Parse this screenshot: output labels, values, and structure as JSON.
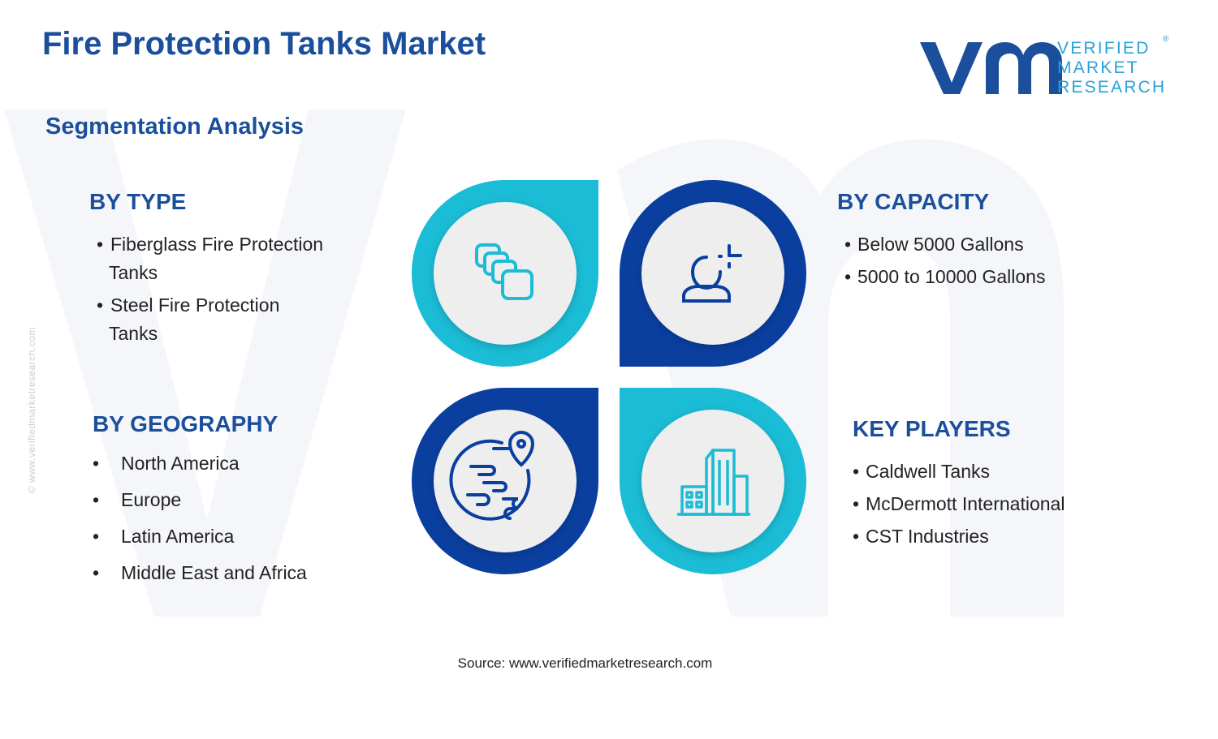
{
  "title": "Fire Protection Tanks Market",
  "subtitle": "Segmentation Analysis",
  "brand": {
    "line1": "VERIFIED",
    "line2": "MARKET",
    "line3": "RESEARCH",
    "reg": "®"
  },
  "side_text": "© www.verifiedmarketresearch.com",
  "source": "Source: www.verifiedmarketresearch.com",
  "segments": {
    "type": {
      "heading": "BY TYPE",
      "items": [
        "Fiberglass Fire Protection",
        "Tanks",
        "Steel Fire Protection",
        "Tanks"
      ]
    },
    "capacity": {
      "heading": "BY CAPACITY",
      "items": [
        "Below 5000 Gallons",
        "5000 to 10000 Gallons"
      ]
    },
    "geography": {
      "heading": "BY GEOGRAPHY",
      "items": [
        "North America",
        "Europe",
        "Latin America",
        "Middle East and Africa"
      ]
    },
    "players": {
      "heading": "KEY PLAYERS",
      "items": [
        "Caldwell Tanks",
        "McDermott International",
        "CST Industries"
      ]
    }
  },
  "bullet": "•",
  "icons": [
    "layers-icon",
    "person-idea-icon",
    "globe-location-icon",
    "buildings-icon"
  ],
  "colors": {
    "dark_blue": "#1b4f9c",
    "teal": "#1bbcd6",
    "navy": "#0a3fa0",
    "circle_fill": "#eeeeee"
  }
}
